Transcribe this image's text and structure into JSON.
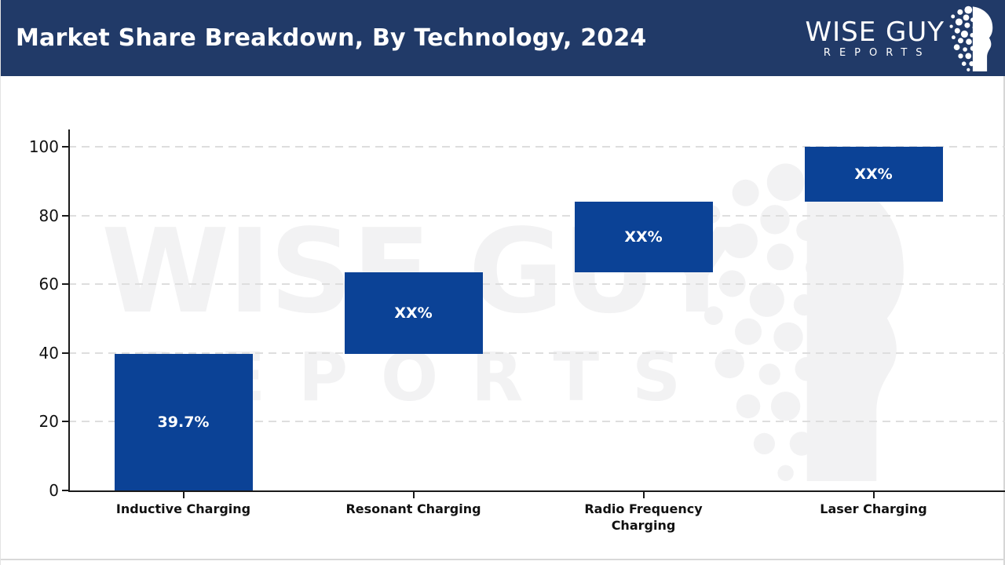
{
  "header": {
    "title": "Market Share Breakdown, By Technology, 2024",
    "background_color": "#213a68",
    "logo": {
      "name": "WISE GUY",
      "subname": "REPORTS"
    }
  },
  "watermark": {
    "text": "WISE GUY",
    "subtext": "REPORTS"
  },
  "colors": {
    "header_bg": "#213a68",
    "bar": "#0b4296",
    "bar_label": "#ffffff",
    "grid": "#dedede",
    "axis": "#1a1a1a",
    "watermark": "#f2f2f3"
  },
  "chart_data": {
    "type": "bar",
    "subtype": "floating-waterfall",
    "title": "Market Share Breakdown, By Technology, 2024",
    "categories": [
      "Inductive Charging",
      "Resonant Charging",
      "Radio Frequency Charging",
      "Laser Charging"
    ],
    "series": [
      {
        "name": "Market share (%)",
        "segments": [
          {
            "category": "Inductive Charging",
            "start": 0,
            "end": 39.7,
            "label": "39.7%"
          },
          {
            "category": "Resonant Charging",
            "start": 39.7,
            "end": 63.5,
            "label": "XX%"
          },
          {
            "category": "Radio Frequency Charging",
            "start": 63.5,
            "end": 84.0,
            "label": "XX%"
          },
          {
            "category": "Laser Charging",
            "start": 84.0,
            "end": 100.0,
            "label": "XX%"
          }
        ]
      }
    ],
    "xlabel": "",
    "ylabel": "",
    "yticks": [
      0,
      20,
      40,
      60,
      80,
      100
    ],
    "ylim": [
      0,
      105
    ],
    "grid": "horizontal-dashed",
    "legend": "none",
    "bar_color": "#0b4296"
  }
}
